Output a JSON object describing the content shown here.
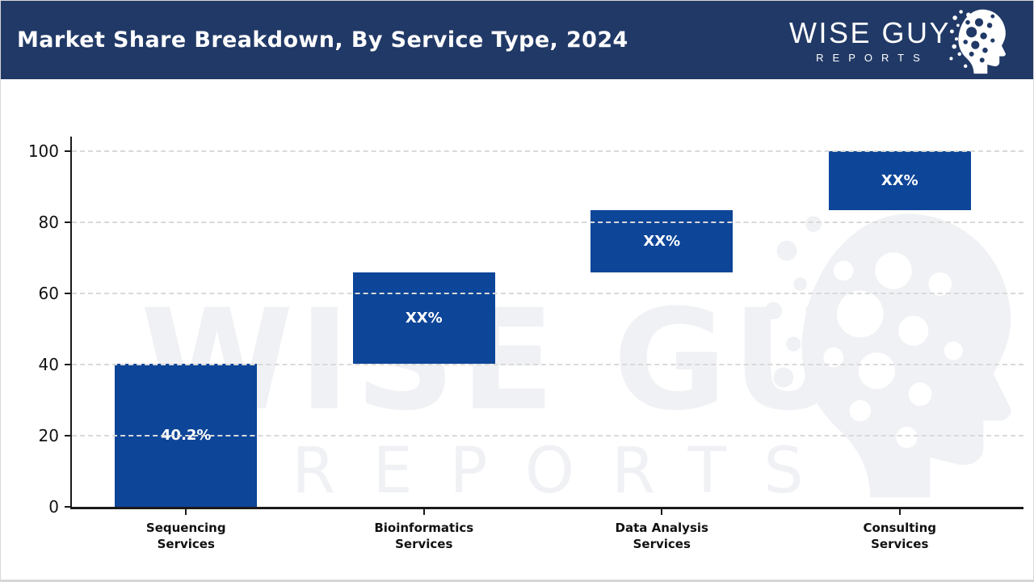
{
  "header": {
    "title": "Market Share Breakdown, By Service Type, 2024",
    "background_color": "#213966",
    "logo": {
      "line1": "WISE GUY",
      "line2": "REPORTS",
      "head_icon": "dotted-head-profile"
    }
  },
  "watermark": {
    "line1": "WISE GUY",
    "line2": "REPORTS",
    "head_icon": "dotted-head-profile"
  },
  "chart_data": {
    "type": "bar",
    "subtype": "waterfall",
    "title": "Market Share Breakdown, By Service Type, 2024",
    "xlabel": "",
    "ylabel": "",
    "categories": [
      "Sequencing\nServices",
      "Bioinformatics\nServices",
      "Data Analysis\nServices",
      "Consulting\nServices"
    ],
    "segments": [
      {
        "start": 0,
        "end": 40.2,
        "label": "40.2%"
      },
      {
        "start": 40.2,
        "end": 66,
        "label": "XX%"
      },
      {
        "start": 66,
        "end": 83.4,
        "label": "XX%"
      },
      {
        "start": 83.4,
        "end": 100,
        "label": "XX%"
      }
    ],
    "yticks": [
      0,
      20,
      40,
      60,
      80,
      100
    ],
    "ylim": [
      0,
      100
    ],
    "grid": "horizontal-dashed",
    "legend": "none",
    "bar_color": "#0d4598",
    "bar_label_color": "#ffffff",
    "gridline_color": "#d9d9d9",
    "axis_color": "#1a1a1a"
  }
}
